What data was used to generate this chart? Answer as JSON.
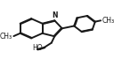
{
  "title": "",
  "background_color": "#ffffff",
  "line_color": "#1a1a1a",
  "line_width": 1.5,
  "font_color": "#1a1a1a",
  "atoms": {
    "label_color": "#1a1a1a",
    "font_size": 7
  }
}
